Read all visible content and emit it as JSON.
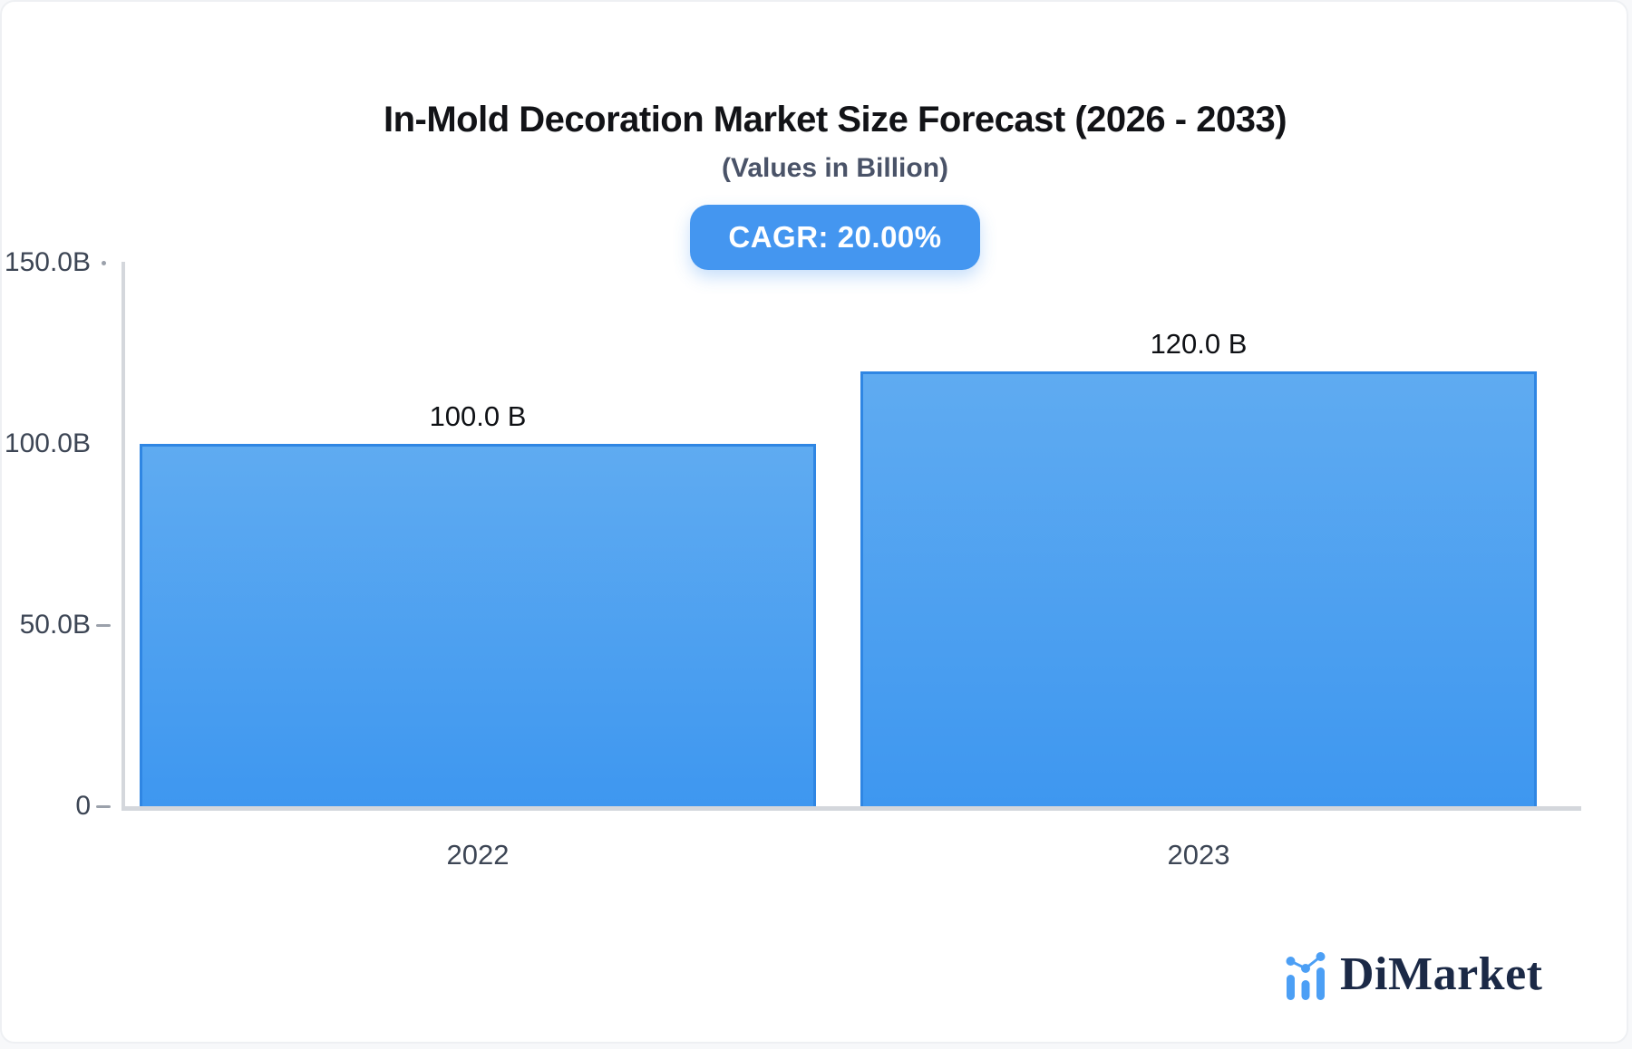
{
  "chart": {
    "title": "In-Mold Decoration Market Size Forecast (2026 - 2033)",
    "subtitle": "(Values in Billion)",
    "cagr_label": "CAGR: 20.00%"
  },
  "chart_data": {
    "type": "bar",
    "title": "In-Mold Decoration Market Size Forecast (2026 - 2033)",
    "subtitle": "(Values in Billion)",
    "cagr_percent": "20.00%",
    "categories": [
      "2022",
      "2023"
    ],
    "values": [
      100.0,
      120.0
    ],
    "value_labels": [
      "100.0 B",
      "120.0 B"
    ],
    "xlabel": "",
    "ylabel": "",
    "ylim": [
      0,
      150
    ],
    "grid": false,
    "legend": false,
    "yticks": [
      {
        "value": 0,
        "label": "0",
        "mark": "dash"
      },
      {
        "value": 50,
        "label": "50.0B",
        "mark": "dash"
      },
      {
        "value": 100,
        "label": "100.0B",
        "mark": "none"
      },
      {
        "value": 150,
        "label": "150.0B",
        "mark": "dot"
      }
    ]
  },
  "footer": {
    "logo_text": "DiMarket",
    "logo_icon": "bar-chart-logo-icon"
  },
  "colors": {
    "badge_bg": "#4496F0",
    "badge_text": "#FFFFFF",
    "bar_top": "#5FABF1",
    "bar_bottom": "#3E97F0",
    "bar_border": "#2F86E3",
    "axis_line": "#D4D7DC",
    "tick_mark": "#9BA1AB",
    "tick_text": "#3D4655",
    "value_text": "#0F1115",
    "title_text": "#121317",
    "subtitle_text": "#4A5368",
    "logo_navy": "#1B2946",
    "logo_blue": "#4C9FF5"
  }
}
